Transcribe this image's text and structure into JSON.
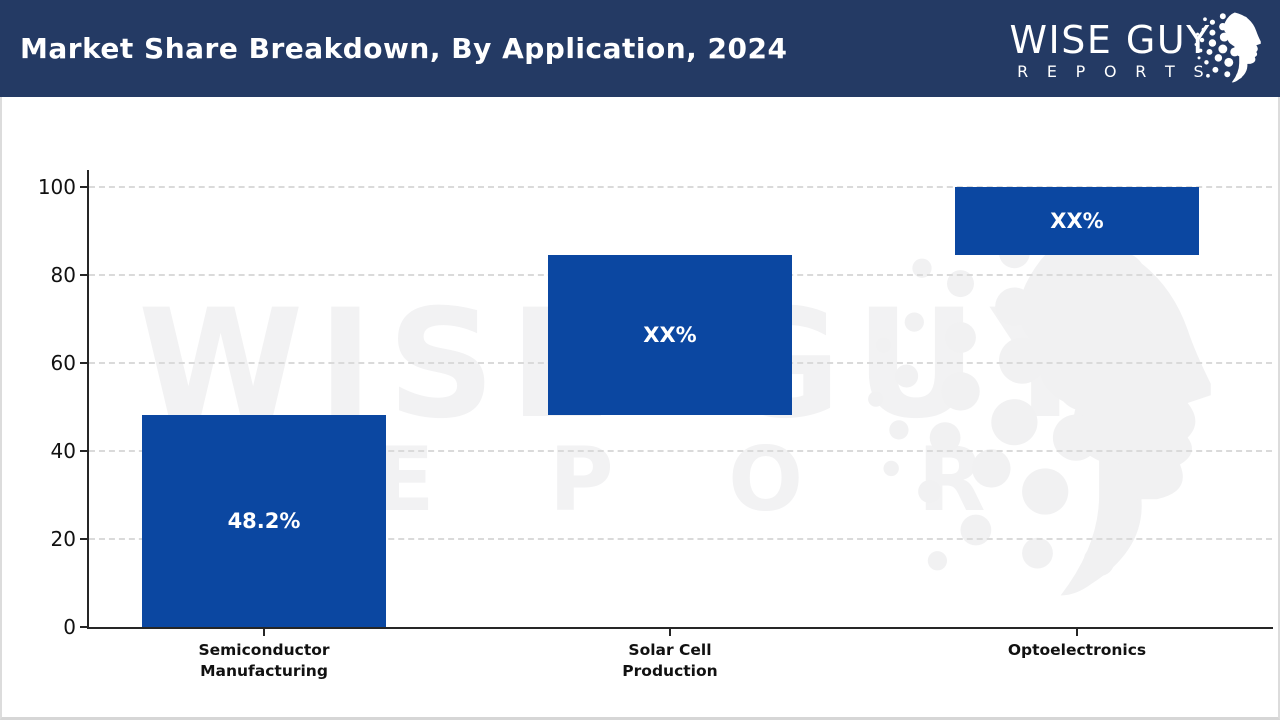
{
  "header": {
    "title": "Market Share Breakdown, By Application, 2024",
    "bg_color": "#243a64",
    "logo": {
      "line1": "WISE GUY",
      "line2": "R E P O R T S"
    }
  },
  "watermark": {
    "line1": "WISE GUY",
    "line2": "R E P O R T S"
  },
  "chart_data": {
    "type": "bar",
    "subtype": "waterfall-floating-segments",
    "title": "Market Share Breakdown, By Application, 2024",
    "categories": [
      [
        "Semiconductor",
        "Manufacturing"
      ],
      [
        "Solar Cell",
        "Production"
      ],
      [
        "Optoelectronics"
      ]
    ],
    "segments": [
      {
        "start": 0,
        "end": 48.2,
        "label": "48.2%"
      },
      {
        "start": 48.2,
        "end": 84.5,
        "label": "XX%"
      },
      {
        "start": 84.5,
        "end": 100,
        "label": "XX%"
      }
    ],
    "yticks": [
      0,
      20,
      40,
      60,
      80,
      100
    ],
    "ylim": [
      0,
      105
    ],
    "xlabel": "",
    "ylabel": "",
    "legend": "none",
    "grid": "horizontal-dashed",
    "bar_color": "#0b47a1",
    "bar_value_color": "#ffffff",
    "axis_color": "#262626",
    "grid_color": "#dadada",
    "tick_label_color": "#111111"
  }
}
